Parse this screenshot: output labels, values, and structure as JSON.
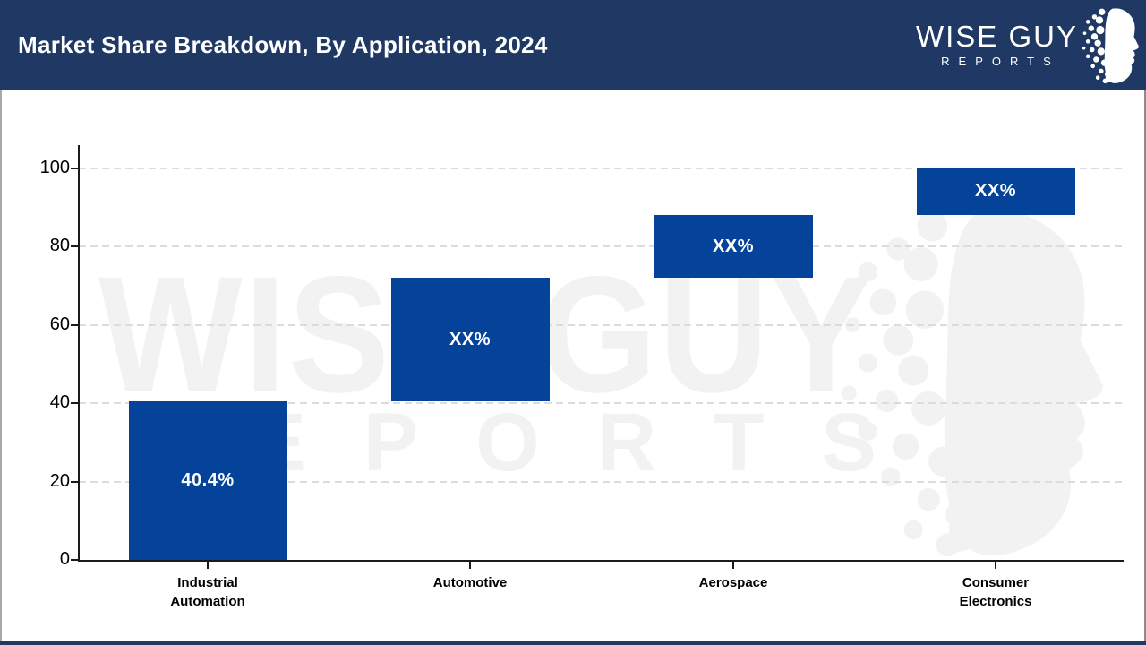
{
  "header": {
    "title": "Market Share Breakdown, By Application, 2024",
    "logo": {
      "name": "WISE GUY",
      "subtitle": "REPORTS"
    }
  },
  "watermark": {
    "line1": "WISE GUY",
    "line2": "REPORTS"
  },
  "chart_data": {
    "type": "bar",
    "subtype": "waterfall",
    "title": "Market Share Breakdown, By Application, 2024",
    "categories": [
      "Industrial Automation",
      "Automotive",
      "Aerospace",
      "Consumer Electronics"
    ],
    "segments": [
      {
        "category": "Industrial Automation",
        "start": 0,
        "end": 40.4,
        "label": "40.4%"
      },
      {
        "category": "Automotive",
        "start": 40.4,
        "end": 72,
        "label": "XX%"
      },
      {
        "category": "Aerospace",
        "start": 72,
        "end": 88,
        "label": "XX%"
      },
      {
        "category": "Consumer Electronics",
        "start": 88,
        "end": 100,
        "label": "XX%"
      }
    ],
    "y_ticks": [
      0,
      20,
      40,
      60,
      80,
      100
    ],
    "ylim": [
      0,
      105
    ],
    "bar_color": "#05429a",
    "bar_label_color": "#ffffff",
    "grid": "horizontal-dashed",
    "legend": "none"
  }
}
